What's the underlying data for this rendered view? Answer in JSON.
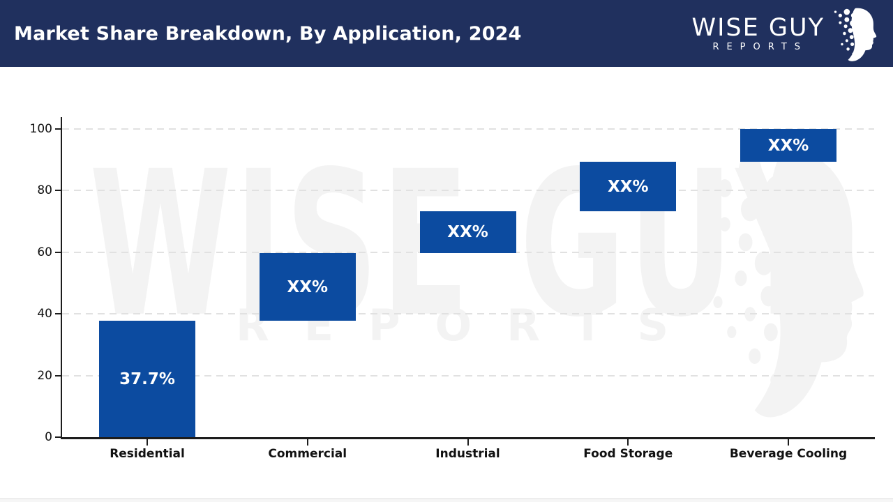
{
  "header": {
    "title": "Market Share Breakdown, By Application, 2024",
    "logo_line1": "WISE GUY",
    "logo_line2": "REPORTS",
    "bg_color": "#20305e"
  },
  "watermark": {
    "line1": "WISE GUY",
    "line2": "REPORTS"
  },
  "chart_data": {
    "type": "bar",
    "subtype": "waterfall",
    "title": "Market Share Breakdown, By Application, 2024",
    "categories": [
      "Residential",
      "Commercial",
      "Industrial",
      "Food Storage",
      "Beverage Cooling"
    ],
    "segments": [
      {
        "category": "Residential",
        "start": 0,
        "end": 37.7,
        "label": "37.7%"
      },
      {
        "category": "Commercial",
        "start": 37.7,
        "end": 59.7,
        "label": "XX%"
      },
      {
        "category": "Industrial",
        "start": 59.7,
        "end": 73.3,
        "label": "XX%"
      },
      {
        "category": "Food Storage",
        "start": 73.3,
        "end": 89.3,
        "label": "XX%"
      },
      {
        "category": "Beverage Cooling",
        "start": 89.3,
        "end": 100,
        "label": "XX%"
      }
    ],
    "yticks": [
      0,
      20,
      40,
      60,
      80,
      100
    ],
    "ylim": [
      0,
      100
    ],
    "xlabel": "",
    "ylabel": "",
    "grid": "horizontal-dashed",
    "legend": "none",
    "bar_color": "#0c4ba0",
    "bar_label_color": "#ffffff",
    "axis_color": "#1c1c1c",
    "gridline_color": "#e1e1e1"
  }
}
